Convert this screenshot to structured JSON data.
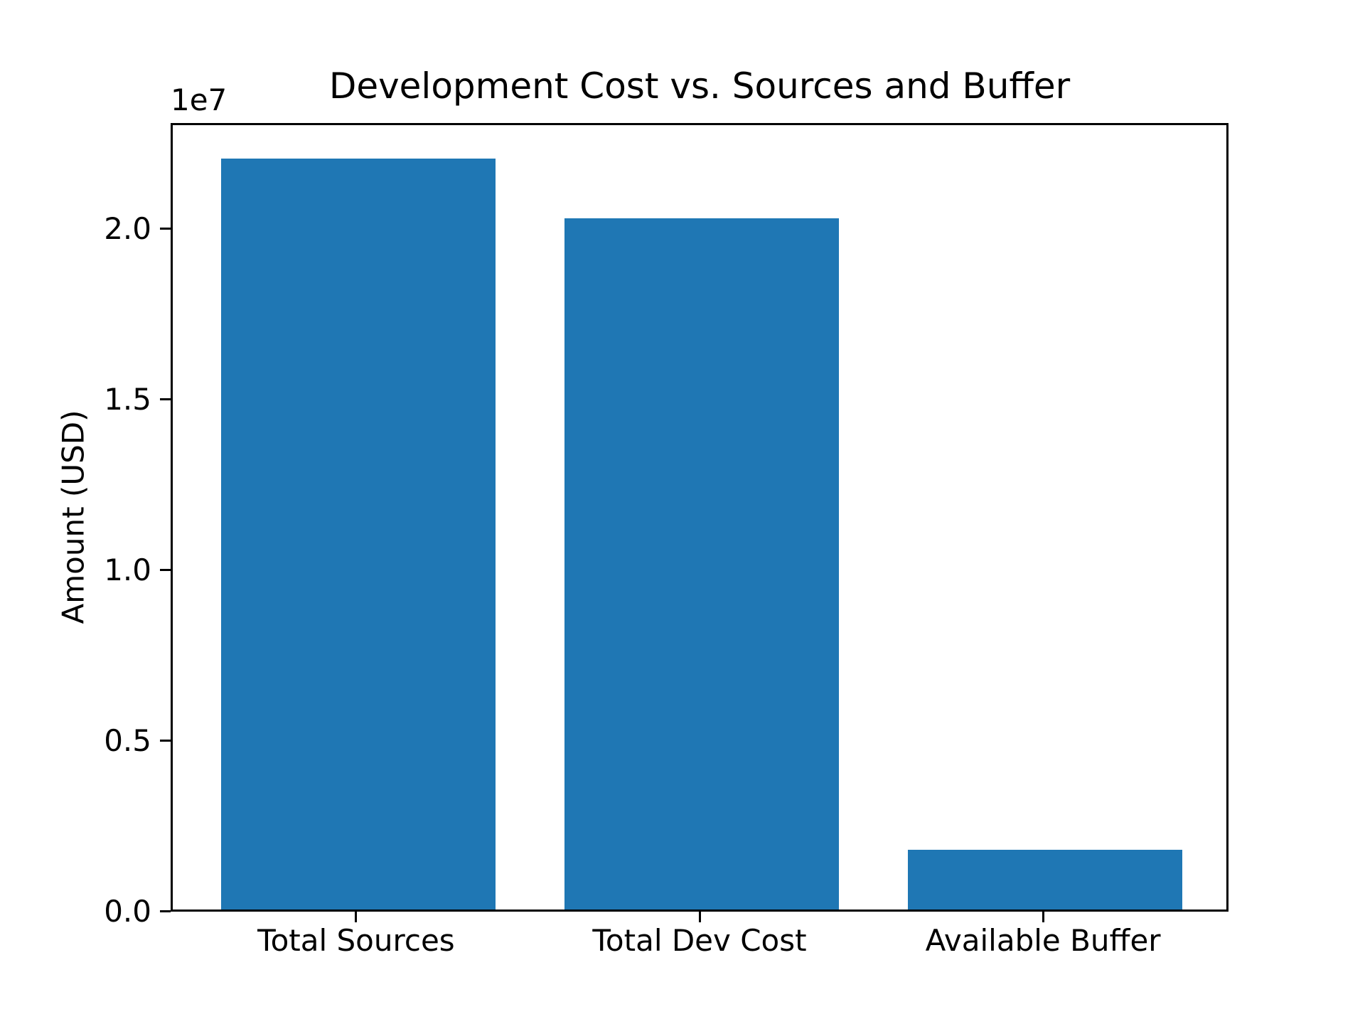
{
  "figure": {
    "background": "#ffffff",
    "text_color": "#000000"
  },
  "chart_data": {
    "type": "bar",
    "title": "Development Cost vs. Sources and Buffer",
    "xlabel": "",
    "ylabel": "Amount (USD)",
    "y_offset_label": "1e7",
    "categories": [
      "Total Sources",
      "Total Dev Cost",
      "Available Buffer"
    ],
    "values": [
      22000000,
      20250000,
      1750000
    ],
    "bar_color": "#1f77b4",
    "ylim": [
      0,
      23100000
    ],
    "yticks": {
      "values": [
        0,
        5000000,
        10000000,
        15000000,
        20000000
      ],
      "labels": [
        "0.0",
        "0.5",
        "1.0",
        "1.5",
        "2.0"
      ]
    },
    "grid": false,
    "legend_position": "none"
  }
}
